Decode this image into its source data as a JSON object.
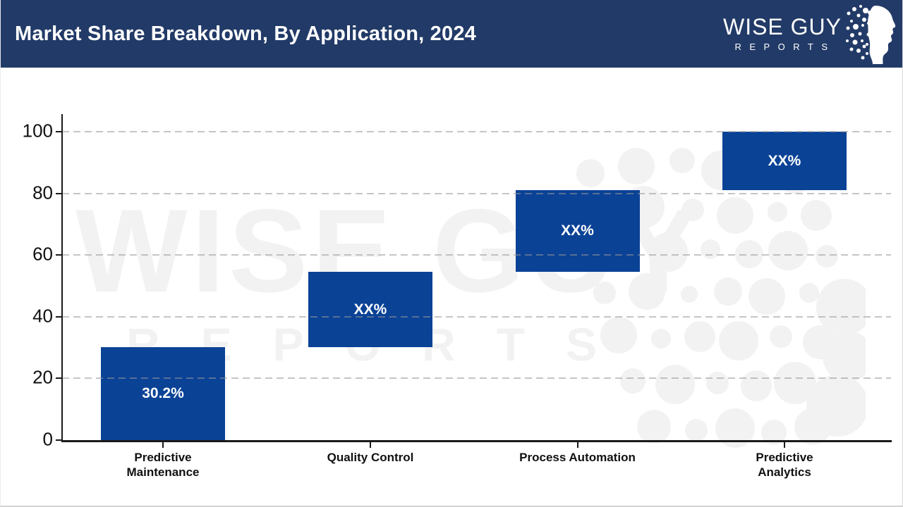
{
  "header": {
    "title": "Market Share Breakdown, By Application, 2024",
    "logo": {
      "wordmark": "WISE GUY",
      "subtitle": "REPORTS"
    }
  },
  "watermark": {
    "wordmark": "WISE GUY",
    "subtitle": "REPORTS"
  },
  "chart_data": {
    "type": "bar",
    "variant": "waterfall",
    "title": "Market Share Breakdown, By Application, 2024",
    "categories": [
      "Predictive\nMaintenance",
      "Quality Control",
      "Process Automation",
      "Predictive\nAnalytics"
    ],
    "bars": [
      {
        "category": "Predictive\nMaintenance",
        "base": 0,
        "top": 30.2,
        "label": "30.2%"
      },
      {
        "category": "Quality Control",
        "base": 30.2,
        "top": 54.5,
        "label": "XX%"
      },
      {
        "category": "Process Automation",
        "base": 54.5,
        "top": 81.0,
        "label": "XX%"
      },
      {
        "category": "Predictive\nAnalytics",
        "base": 81.0,
        "top": 100.0,
        "label": "XX%"
      }
    ],
    "ylim": [
      0,
      100
    ],
    "yticks": [
      0,
      20,
      40,
      60,
      80,
      100
    ],
    "xlabel": "",
    "ylabel": "",
    "grid": {
      "horizontal": true,
      "style": "dashed"
    },
    "legend": "none"
  },
  "colors": {
    "header_bg": "#223a67",
    "bar": "#0a4296",
    "bar_label": "#ffffff",
    "axis": "#1a1a1a",
    "watermark": "#f2f2f2",
    "text": "#111111",
    "page_bg": "#ffffff"
  }
}
